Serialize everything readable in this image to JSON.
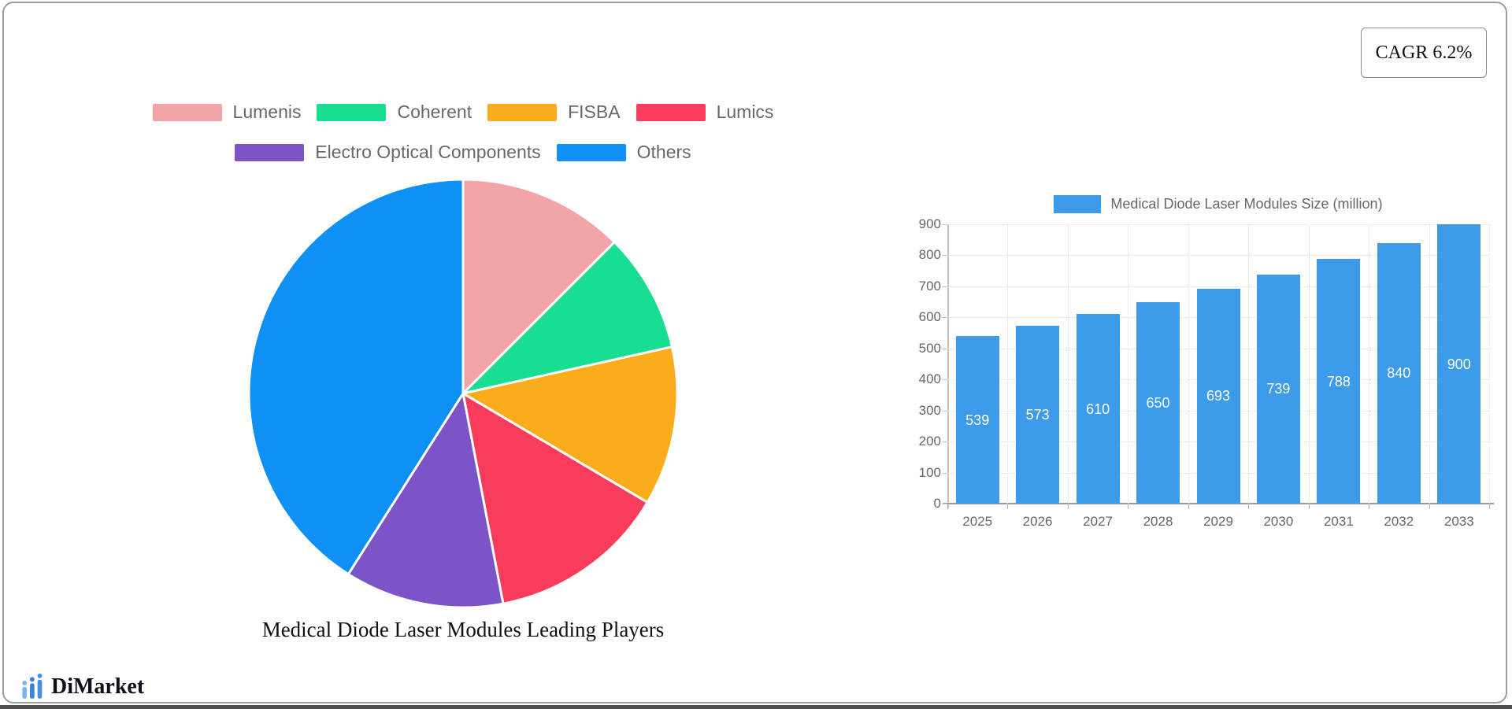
{
  "cagr": {
    "label": "CAGR 6.2%"
  },
  "branding": {
    "name": "DiMarket",
    "icon": "bar-chart-logo-icon",
    "icon_color": "#4A90E2"
  },
  "chart_data": [
    {
      "type": "pie",
      "title": "Medical Diode Laser Modules Leading Players",
      "labels": [
        "Lumenis",
        "Coherent",
        "FISBA",
        "Lumics",
        "Electro Optical Components",
        "Others"
      ],
      "values_percent": [
        12.5,
        9,
        12,
        13.5,
        12,
        41
      ],
      "colors": [
        "#F3A4A9",
        "#18DE92",
        "#FBAC1B",
        "#F93C5C",
        "#7C54C8",
        "#0E90F5"
      ],
      "start_angle_deg": 0,
      "direction": "clockwise",
      "legend_position": "top",
      "legend_rows": [
        [
          0,
          1,
          2,
          3
        ],
        [
          4,
          5
        ]
      ],
      "slice_border_color": "#ffffff"
    },
    {
      "type": "bar",
      "legend": "Medical Diode Laser Modules Size (million)",
      "categories": [
        "2025",
        "2026",
        "2027",
        "2028",
        "2029",
        "2030",
        "2031",
        "2032",
        "2033"
      ],
      "values": [
        539,
        573,
        610,
        650,
        693,
        739,
        788,
        840,
        900
      ],
      "bar_color": "#3D9BE9",
      "value_label_color": "#ffffff",
      "ylim": [
        0,
        900
      ],
      "yticks": [
        0,
        100,
        200,
        300,
        400,
        500,
        600,
        700,
        800,
        900
      ],
      "grid": true,
      "legend_position": "top",
      "value_labels": "inside-center"
    }
  ]
}
